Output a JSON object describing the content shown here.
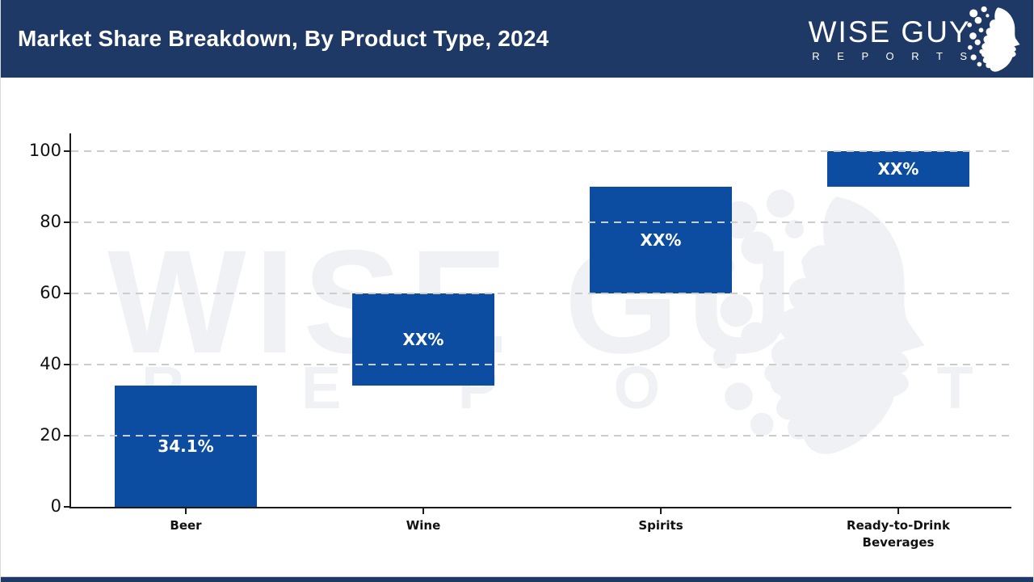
{
  "header": {
    "title": "Market Share Breakdown, By Product Type, 2024",
    "background_color": "#1F3966",
    "logo": {
      "line1": "WISE GUY",
      "line2": "R E P O R T S"
    }
  },
  "watermark": {
    "line1": "WISE GU",
    "line2": "R E P O R T S",
    "color": "#f0f1f4"
  },
  "footer": {
    "bar_color": "#1F3966"
  },
  "chart_data": {
    "type": "bar",
    "subtype": "waterfall",
    "title": "Market Share Breakdown, By Product Type, 2024",
    "xlabel": "",
    "ylabel": "",
    "ylim": [
      0,
      105
    ],
    "yticks": [
      0,
      20,
      40,
      60,
      80,
      100
    ],
    "grid": "horizontal-dashed",
    "grid_color": "#cccccc",
    "bar_color": "#0C4DA2",
    "value_label_color": "#FFFFFF",
    "categories": [
      "Beer",
      "Wine",
      "Spirits",
      "Ready-to-Drink Beverages"
    ],
    "segments": [
      {
        "category": "Beer",
        "start": 0,
        "end": 34.1,
        "value": 34.1,
        "label": "34.1%"
      },
      {
        "category": "Wine",
        "start": 34.1,
        "end": 60,
        "value": 25.9,
        "label": "XX%"
      },
      {
        "category": "Spirits",
        "start": 60,
        "end": 90,
        "value": 30,
        "label": "XX%"
      },
      {
        "category": "Ready-to-Drink Beverages",
        "start": 90,
        "end": 100,
        "value": 10,
        "label": "XX%"
      }
    ]
  }
}
